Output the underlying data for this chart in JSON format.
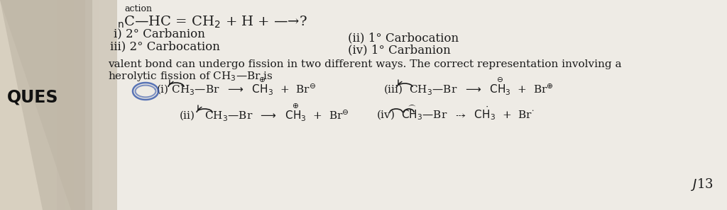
{
  "background_color": "#d8d0c0",
  "page_color": "#f0ede8",
  "shadow_color": "#b0a898",
  "text_color": "#1a1a1a",
  "top_formula": "C—HC = CH₂ + H + —→?",
  "option_i": "i) 2° Carbanion",
  "option_iii": "iii) 2° Carbocation",
  "option_ii": "(ii) 1° Carbocation",
  "option_iv": "(iv) 1° Carbanion",
  "para1": "valent bond can undergo fission in two different ways. The correct representation involving a",
  "para2": "herolytic fission of CH₃—Br is",
  "ques": "QUES",
  "page_num": "J13",
  "fs_title": 14,
  "fs_body": 12,
  "fs_rxn": 11,
  "fs_ques": 15
}
